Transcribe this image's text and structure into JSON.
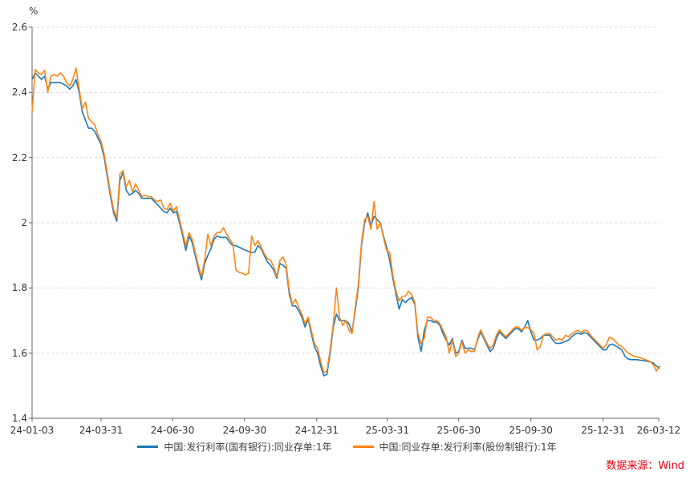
{
  "chart_data": {
    "type": "line",
    "title": "",
    "unit": "%",
    "source_note": "数据来源：Wind",
    "source_color": "#e60012",
    "background": "#ffffff",
    "grid": "horizontal-dashed",
    "grid_color": "#d9d9d9",
    "axis_color": "#666666",
    "legend_position": "bottom-center",
    "ylim": [
      1.4,
      2.6
    ],
    "yticks": [
      1.4,
      1.6,
      1.8,
      2.0,
      2.2,
      2.4,
      2.6
    ],
    "ytick_labels": [
      "1.4",
      "1.6",
      "1.8",
      "2",
      "2.2",
      "2.4",
      "2.6"
    ],
    "x_domain_days": [
      0,
      800
    ],
    "sample_step_days": 4,
    "x_ticks": [
      {
        "label": "24-01-03",
        "day": 0
      },
      {
        "label": "24-03-31",
        "day": 88
      },
      {
        "label": "24-06-30",
        "day": 179
      },
      {
        "label": "24-09-30",
        "day": 271
      },
      {
        "label": "24-12-31",
        "day": 363
      },
      {
        "label": "25-03-31",
        "day": 453
      },
      {
        "label": "25-06-30",
        "day": 544
      },
      {
        "label": "25-09-30",
        "day": 636
      },
      {
        "label": "25-12-31",
        "day": 728
      },
      {
        "label": "26-03-12",
        "day": 799
      }
    ],
    "series": [
      {
        "name": "中国:发行利率(国有银行):同业存单:1年",
        "color": "#1f77b4",
        "values": [
          2.44,
          2.46,
          2.45,
          2.44,
          2.45,
          2.41,
          2.43,
          2.43,
          2.43,
          2.43,
          2.425,
          2.42,
          2.41,
          2.42,
          2.44,
          2.4,
          2.34,
          2.315,
          2.29,
          2.29,
          2.28,
          2.26,
          2.24,
          2.2,
          2.14,
          2.08,
          2.03,
          2.005,
          2.13,
          2.155,
          2.1,
          2.085,
          2.09,
          2.1,
          2.09,
          2.075,
          2.075,
          2.075,
          2.075,
          2.065,
          2.055,
          2.045,
          2.035,
          2.03,
          2.045,
          2.03,
          2.035,
          2.0,
          1.96,
          1.915,
          1.96,
          1.94,
          1.9,
          1.86,
          1.825,
          1.875,
          1.9,
          1.92,
          1.95,
          1.96,
          1.955,
          1.955,
          1.955,
          1.94,
          1.93,
          1.93,
          1.925,
          1.92,
          1.916,
          1.912,
          1.908,
          1.91,
          1.93,
          1.92,
          1.9,
          1.88,
          1.87,
          1.855,
          1.83,
          1.875,
          1.87,
          1.86,
          1.78,
          1.745,
          1.745,
          1.73,
          1.71,
          1.68,
          1.705,
          1.66,
          1.62,
          1.6,
          1.56,
          1.53,
          1.535,
          1.6,
          1.68,
          1.72,
          1.7,
          1.7,
          1.7,
          1.69,
          1.665,
          1.73,
          1.8,
          1.93,
          2.0,
          2.03,
          1.99,
          2.02,
          2.01,
          2.0,
          1.96,
          1.925,
          1.885,
          1.83,
          1.78,
          1.735,
          1.765,
          1.755,
          1.765,
          1.77,
          1.75,
          1.65,
          1.605,
          1.67,
          1.7,
          1.7,
          1.695,
          1.695,
          1.685,
          1.66,
          1.64,
          1.625,
          1.645,
          1.6,
          1.605,
          1.64,
          1.615,
          1.615,
          1.615,
          1.61,
          1.64,
          1.665,
          1.645,
          1.625,
          1.605,
          1.615,
          1.645,
          1.665,
          1.655,
          1.645,
          1.655,
          1.665,
          1.675,
          1.675,
          1.665,
          1.68,
          1.7,
          1.665,
          1.64,
          1.64,
          1.645,
          1.655,
          1.655,
          1.655,
          1.64,
          1.63,
          1.63,
          1.632,
          1.636,
          1.64,
          1.65,
          1.658,
          1.662,
          1.658,
          1.663,
          1.66,
          1.65,
          1.64,
          1.63,
          1.62,
          1.61,
          1.61,
          1.625,
          1.628,
          1.622,
          1.617,
          1.61,
          1.59,
          1.582,
          1.58,
          1.58,
          1.58,
          1.578,
          1.577,
          1.575,
          1.573,
          1.57,
          1.56,
          1.555
        ]
      },
      {
        "name": "中国:同业存单:发行利率(股份制银行):1年",
        "color": "#ff8514",
        "values": [
          2.34,
          2.47,
          2.46,
          2.455,
          2.468,
          2.4,
          2.45,
          2.455,
          2.45,
          2.46,
          2.45,
          2.43,
          2.42,
          2.44,
          2.475,
          2.41,
          2.35,
          2.37,
          2.32,
          2.31,
          2.3,
          2.27,
          2.25,
          2.21,
          2.15,
          2.09,
          2.04,
          2.015,
          2.15,
          2.16,
          2.11,
          2.13,
          2.095,
          2.12,
          2.1,
          2.08,
          2.085,
          2.08,
          2.08,
          2.07,
          2.065,
          2.07,
          2.045,
          2.04,
          2.06,
          2.035,
          2.05,
          2.01,
          1.97,
          1.93,
          1.97,
          1.95,
          1.91,
          1.87,
          1.835,
          1.885,
          1.965,
          1.93,
          1.96,
          1.97,
          1.97,
          1.985,
          1.965,
          1.95,
          1.935,
          1.855,
          1.848,
          1.845,
          1.84,
          1.845,
          1.96,
          1.93,
          1.945,
          1.925,
          1.905,
          1.89,
          1.885,
          1.865,
          1.835,
          1.885,
          1.895,
          1.87,
          1.79,
          1.75,
          1.765,
          1.74,
          1.72,
          1.69,
          1.71,
          1.67,
          1.63,
          1.615,
          1.575,
          1.54,
          1.545,
          1.61,
          1.69,
          1.8,
          1.71,
          1.685,
          1.7,
          1.67,
          1.66,
          1.74,
          1.81,
          1.94,
          2.01,
          2.02,
          1.98,
          2.065,
          1.98,
          2.0,
          1.955,
          1.915,
          1.91,
          1.84,
          1.79,
          1.76,
          1.775,
          1.775,
          1.79,
          1.78,
          1.755,
          1.66,
          1.63,
          1.645,
          1.71,
          1.71,
          1.7,
          1.7,
          1.69,
          1.67,
          1.65,
          1.6,
          1.64,
          1.59,
          1.6,
          1.635,
          1.6,
          1.61,
          1.605,
          1.605,
          1.645,
          1.672,
          1.65,
          1.63,
          1.615,
          1.625,
          1.655,
          1.672,
          1.66,
          1.65,
          1.66,
          1.67,
          1.68,
          1.68,
          1.67,
          1.678,
          1.678,
          1.672,
          1.66,
          1.61,
          1.62,
          1.655,
          1.66,
          1.66,
          1.65,
          1.64,
          1.645,
          1.64,
          1.655,
          1.65,
          1.66,
          1.665,
          1.67,
          1.663,
          1.67,
          1.668,
          1.655,
          1.645,
          1.635,
          1.625,
          1.615,
          1.625,
          1.648,
          1.645,
          1.635,
          1.625,
          1.62,
          1.61,
          1.6,
          1.595,
          1.59,
          1.588,
          1.585,
          1.582,
          1.578,
          1.574,
          1.565,
          1.545,
          1.56
        ]
      }
    ]
  }
}
